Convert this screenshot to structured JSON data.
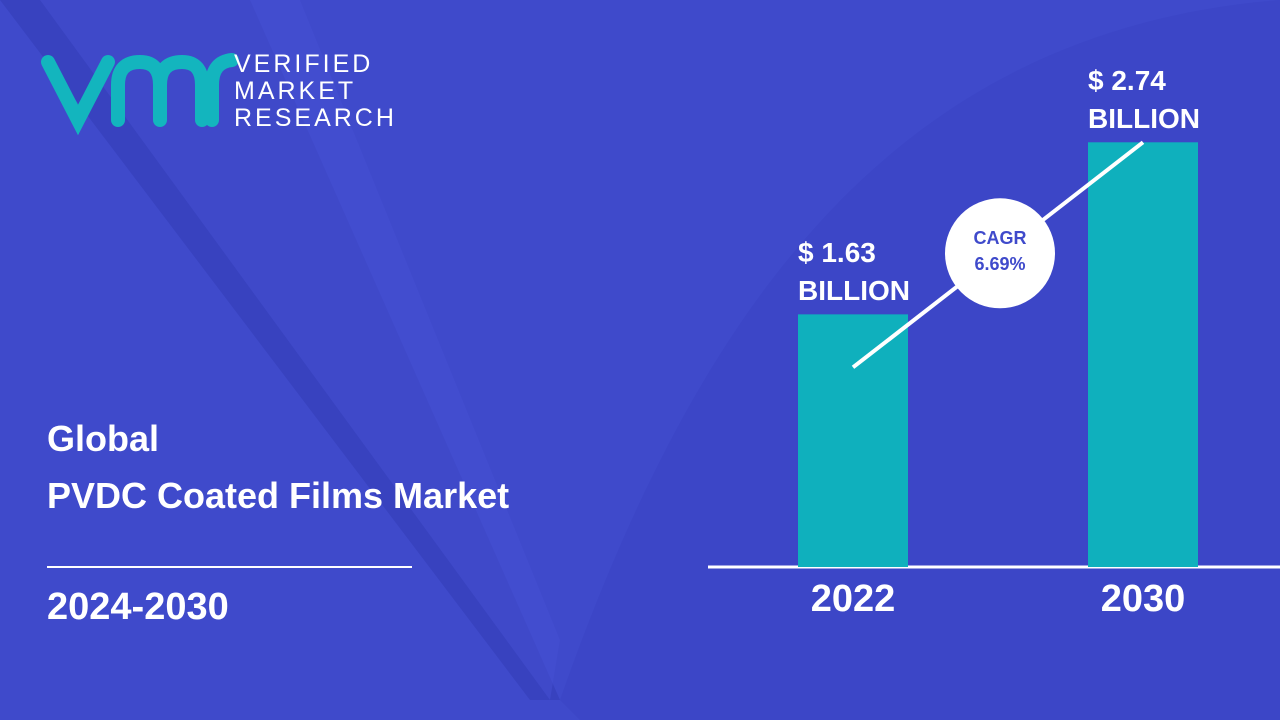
{
  "brand": {
    "line1": "VERIFIED",
    "line2": "MARKET",
    "line3": "RESEARCH"
  },
  "chart_data": {
    "type": "bar",
    "title": "Global",
    "subtitle": "PVDC Coated Films Market",
    "period": "2024-2030",
    "categories": [
      "2022",
      "2030"
    ],
    "values": [
      1.63,
      2.74
    ],
    "value_labels": [
      "$ 1.63\nBILLION",
      "$ 2.74\nBILLION"
    ],
    "color": "#0fb0bd",
    "cagr_label": "CAGR",
    "cagr_value": "6.69%"
  }
}
